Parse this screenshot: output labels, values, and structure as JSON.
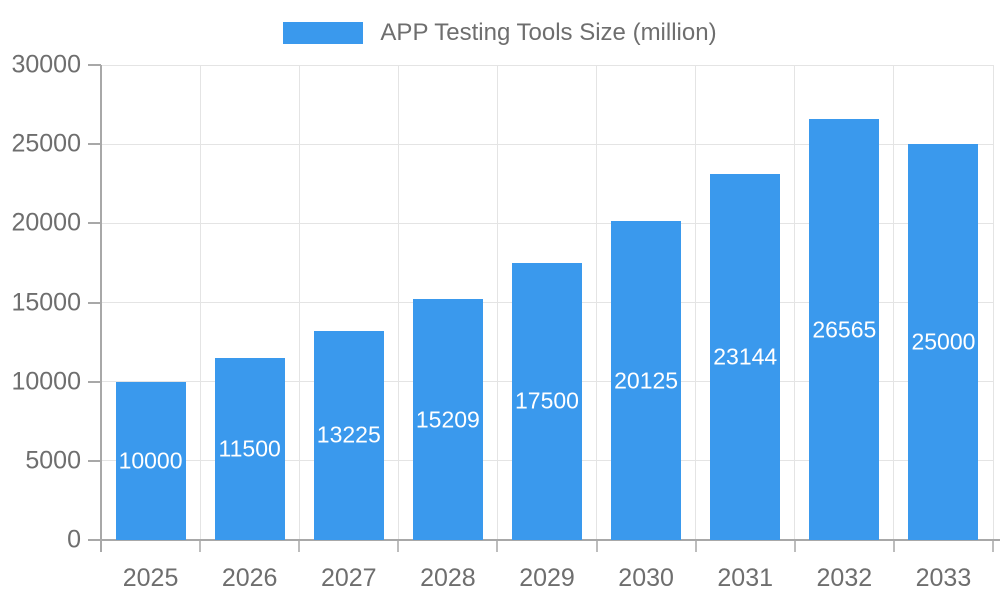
{
  "chart_data": {
    "type": "bar",
    "title": "APP Testing Tools Size (million)",
    "legend": {
      "label": "APP Testing Tools Size (million)",
      "position": "top-center"
    },
    "categories": [
      "2025",
      "2026",
      "2027",
      "2028",
      "2029",
      "2030",
      "2031",
      "2032",
      "2033"
    ],
    "values": [
      10000,
      11500,
      13225,
      15209,
      17500,
      20125,
      23144,
      26565,
      25000
    ],
    "xlabel": "",
    "ylabel": "",
    "ylim": [
      0,
      30000
    ],
    "yticks": [
      0,
      5000,
      10000,
      15000,
      20000,
      25000,
      30000
    ],
    "grid": true,
    "bar_color": "#3a99ed",
    "bar_value_label_color": "#ffffff",
    "axis_text_color": "#6e6e6e",
    "gridline_color": "#e4e4e4",
    "axis_line_color": "#a8a8a8"
  }
}
